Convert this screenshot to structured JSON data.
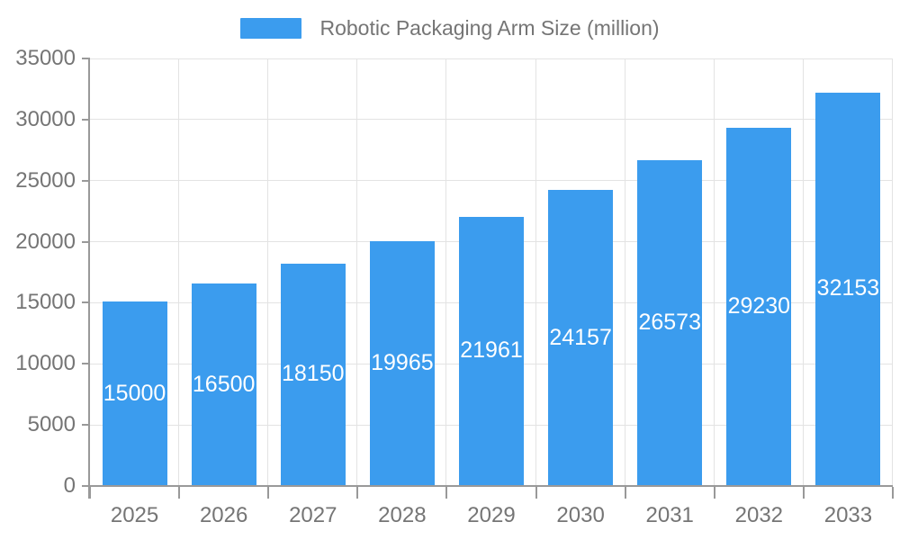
{
  "chart_data": {
    "type": "bar",
    "title": "Robotic Packaging Arm Size (million)",
    "categories": [
      "2025",
      "2026",
      "2027",
      "2028",
      "2029",
      "2030",
      "2031",
      "2032",
      "2033"
    ],
    "series": [
      {
        "name": "Robotic Packaging Arm Size (million)",
        "values": [
          15000,
          16500,
          18150,
          19965,
          21961,
          24157,
          26573,
          29230,
          32153
        ]
      }
    ],
    "data_labels": [
      15000,
      16500,
      18150,
      19965,
      21961,
      24157,
      26573,
      29230,
      32153
    ],
    "xlabel": "",
    "ylabel": "",
    "ylim": [
      0,
      35000
    ],
    "yticks": [
      0,
      5000,
      10000,
      15000,
      20000,
      25000,
      30000,
      35000
    ],
    "grid": true,
    "legend_position": "top-center",
    "data_label_position": "inside-center"
  },
  "legend": {
    "label": "Robotic Packaging Arm Size (million)"
  },
  "colors": {
    "bar": "#3b9cee",
    "axis": "#999999",
    "gridline": "#e3e3e3",
    "tick_text": "#757575",
    "legend_text": "#757575",
    "data_label_text": "#ffffff",
    "background": "#ffffff"
  }
}
